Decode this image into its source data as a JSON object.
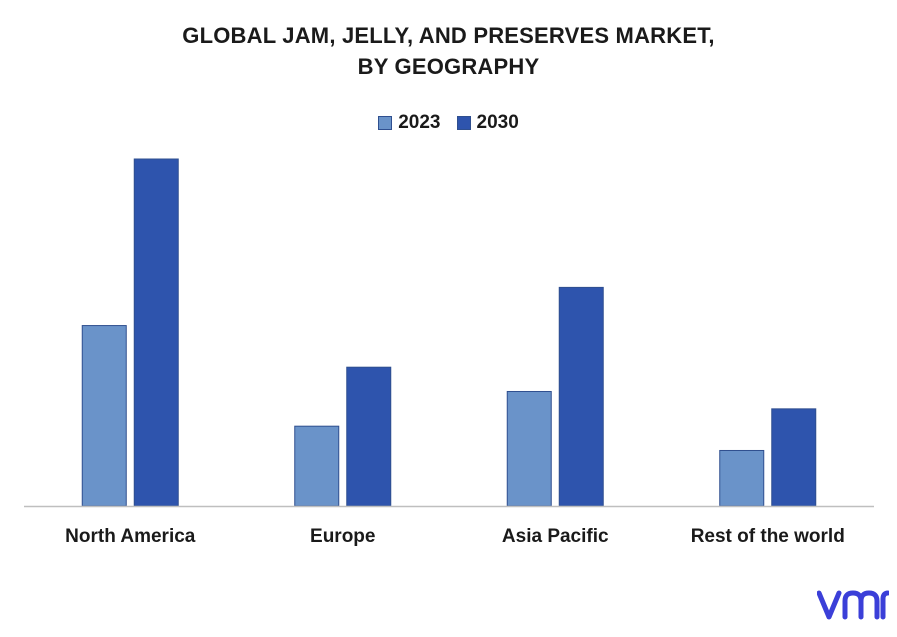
{
  "chart_data": {
    "type": "bar",
    "title_lines": [
      "GLOBAL JAM, JELLY, AND PRESERVES MARKET,",
      "BY GEOGRAPHY"
    ],
    "categories": [
      "North America",
      "Europe",
      "Asia Pacific",
      "Rest of the world"
    ],
    "series": [
      {
        "name": "2023",
        "color": "#6a93c9",
        "values": [
          52,
          23,
          33,
          16
        ]
      },
      {
        "name": "2030",
        "color": "#2e54ad",
        "values": [
          100,
          40,
          63,
          28
        ]
      }
    ],
    "ylim": [
      0,
      100
    ],
    "grid": false,
    "legend_position": "top-center"
  },
  "brand": {
    "logo_icon": "vmr-logo-icon",
    "color": "#3b3fd8"
  }
}
